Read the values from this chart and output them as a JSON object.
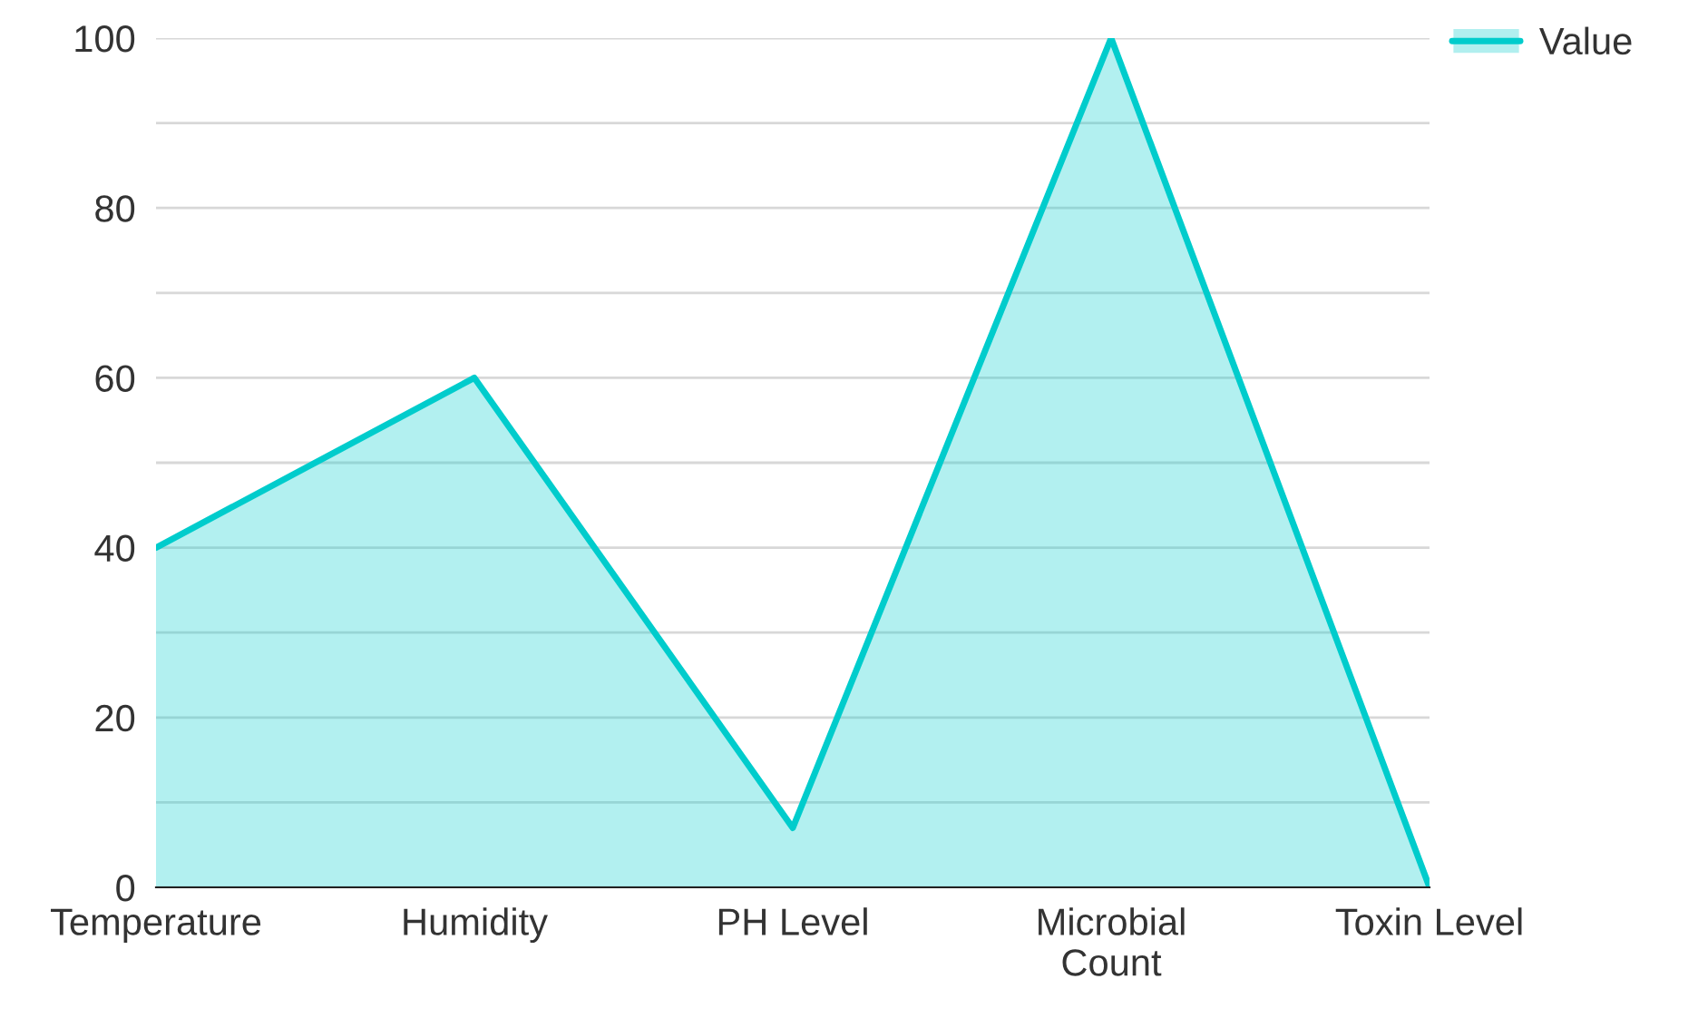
{
  "chart_data": {
    "type": "area",
    "categories": [
      "Temperature",
      "Humidity",
      "PH Level",
      "Microbial\nCount",
      "Toxin Level"
    ],
    "series": [
      {
        "name": "Value",
        "color": "#00cccc",
        "values": [
          40,
          60,
          7,
          100,
          0
        ]
      }
    ],
    "ylim": [
      0,
      100
    ],
    "yticks": [
      0,
      {
        "value": 10,
        "label": null
      },
      20,
      {
        "value": 30,
        "label": null
      },
      40,
      {
        "value": 50,
        "label": null
      },
      60,
      {
        "value": 70,
        "label": null
      },
      80,
      {
        "value": 90,
        "label": null
      },
      100
    ],
    "grid": "y",
    "legend": "top right"
  }
}
